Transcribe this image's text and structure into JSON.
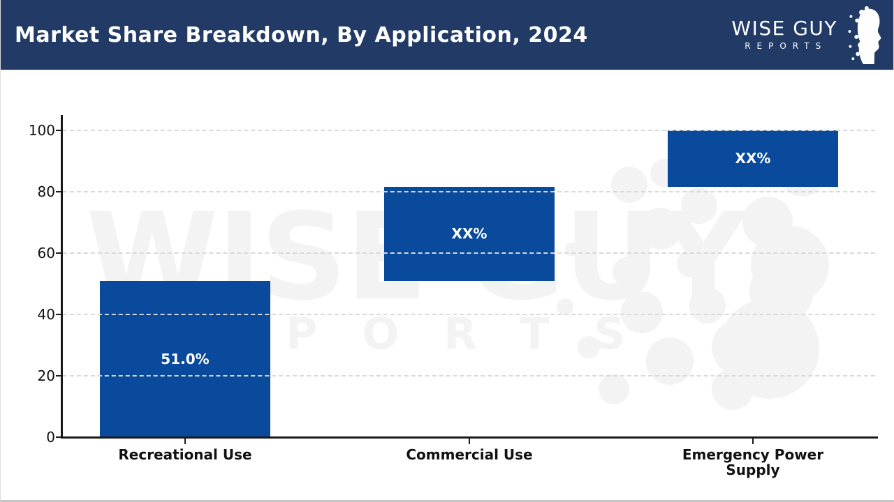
{
  "header": {
    "title": "Market Share Breakdown, By Application, 2024",
    "logo": {
      "wordmark": "WISE GUY",
      "subtext": "REPORTS"
    }
  },
  "watermark": {
    "wordmark": "WISE GUY",
    "subtext": "REPORTS"
  },
  "chart_data": {
    "type": "bar",
    "subtype": "waterfall",
    "title": "Market Share Breakdown, By Application, 2024",
    "categories": [
      "Recreational Use",
      "Commercial Use",
      "Emergency Power Supply"
    ],
    "bars": [
      {
        "category": "Recreational Use",
        "start": 0,
        "end": 51.0,
        "value": 51.0,
        "label": "51.0%"
      },
      {
        "category": "Commercial Use",
        "start": 51.0,
        "end": 81.6,
        "value": 30.6,
        "label": "XX%"
      },
      {
        "category": "Emergency Power Supply",
        "start": 81.6,
        "end": 100.0,
        "value": 18.4,
        "label": "XX%"
      }
    ],
    "xlabel": "",
    "ylabel": "",
    "ylim": [
      0,
      100
    ],
    "yticks": [
      0,
      20,
      40,
      60,
      80,
      100
    ],
    "grid": "horizontal-dashed",
    "legend": "none",
    "unit": "%"
  },
  "colors": {
    "header_bg": "#213a66",
    "bar": "#0a4a9c",
    "bar_label": "#ffffff",
    "grid": "#d9d9d9",
    "axis": "#1a1a1a",
    "watermark": "#f3f3f3"
  }
}
